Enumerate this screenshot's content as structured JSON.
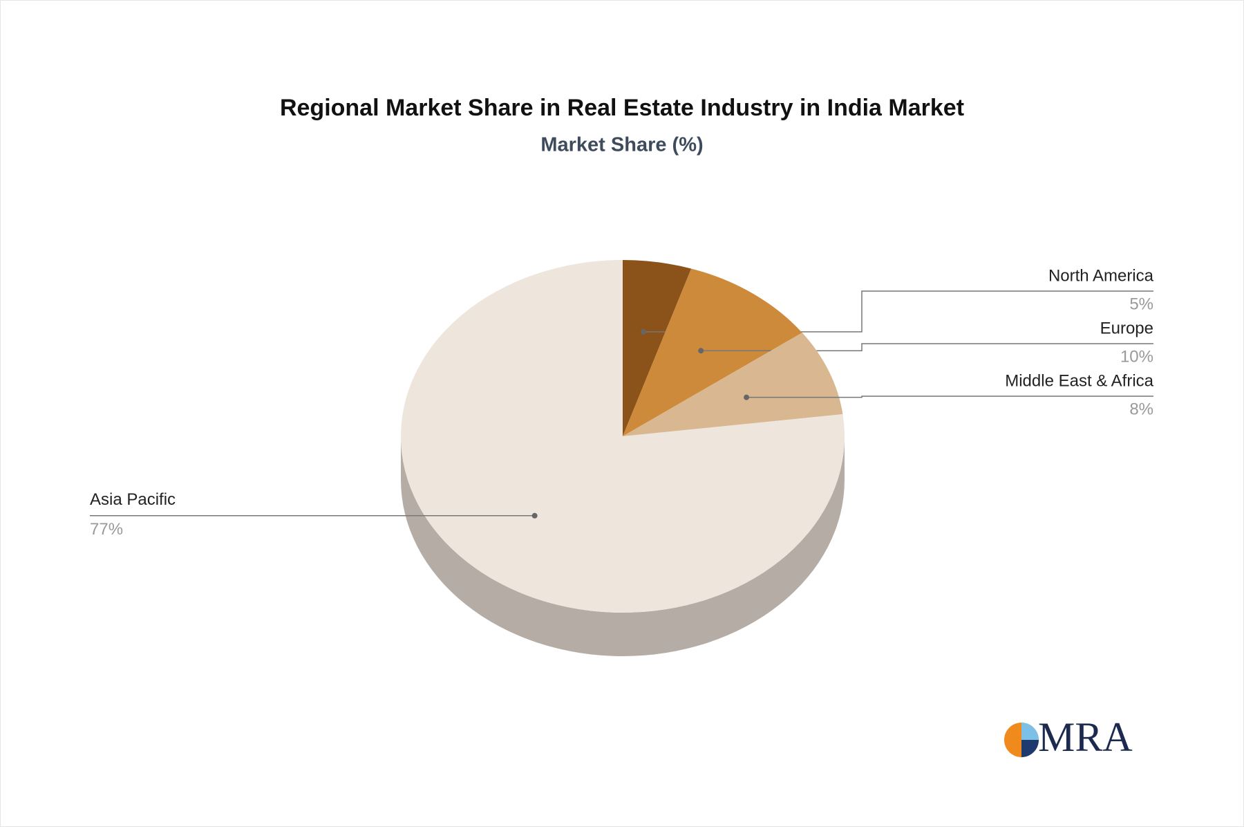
{
  "chart_data": {
    "type": "pie",
    "title": "Regional Market Share in Real Estate Industry in India Market",
    "subtitle": "Market Share (%)",
    "categories": [
      "North America",
      "Europe",
      "Middle East & Africa",
      "Asia Pacific"
    ],
    "values": [
      5,
      10,
      8,
      77
    ],
    "value_labels": [
      "5%",
      "10%",
      "8%",
      "77%"
    ],
    "colors": [
      "#8b5319",
      "#cd8a3a",
      "#d9b891",
      "#eee5dc"
    ],
    "side_color": "#b5ada5"
  },
  "logo": "MRA"
}
